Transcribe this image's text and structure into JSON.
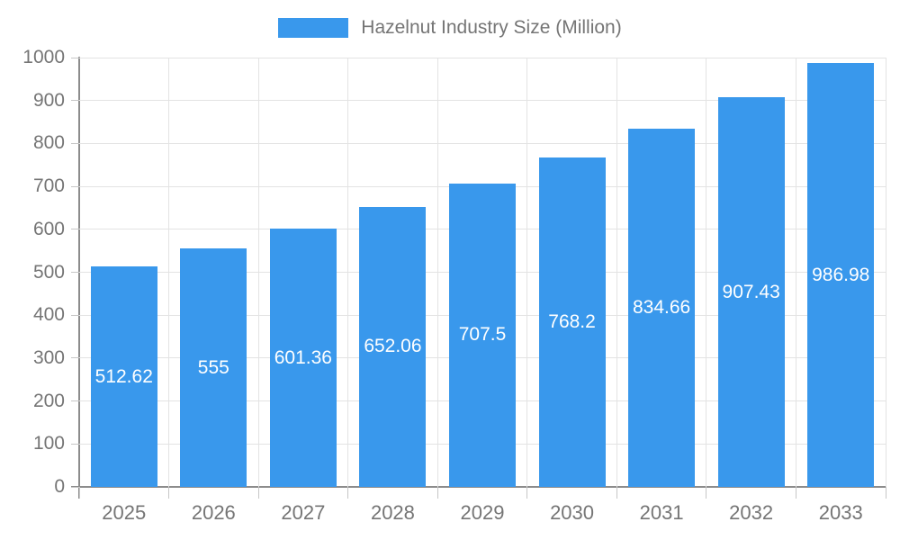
{
  "colors": {
    "bar": "#3998EC",
    "grid": "#E3E3E3",
    "axis_line": "#8C8C8C",
    "tick": "#C6C6C6",
    "label_text": "#757575",
    "bar_label_text": "#FFFFFF",
    "background": "#FFFFFF"
  },
  "legend": {
    "position": "top",
    "swatch_icon": "legend-color-swatch"
  },
  "chart_data": {
    "type": "bar",
    "title": "Hazelnut Industry Size (Million)",
    "xlabel": "",
    "ylabel": "",
    "categories": [
      "2025",
      "2026",
      "2027",
      "2028",
      "2029",
      "2030",
      "2031",
      "2032",
      "2033"
    ],
    "values": [
      512.62,
      555,
      601.36,
      652.06,
      707.5,
      768.2,
      834.66,
      907.43,
      986.98
    ],
    "value_labels": [
      "512.62",
      "555",
      "601.36",
      "652.06",
      "707.5",
      "768.2",
      "834.66",
      "907.43",
      "986.98"
    ],
    "ylim": [
      0,
      1000
    ],
    "y_tick_step": 100,
    "y_tick_labels": [
      "0",
      "100",
      "200",
      "300",
      "400",
      "500",
      "600",
      "700",
      "800",
      "900",
      "1000"
    ],
    "grid": true,
    "legend_position": "top",
    "value_label_position": "center-inside",
    "series": [
      {
        "name": "Hazelnut Industry Size (Million)",
        "color": "#3998EC"
      }
    ]
  }
}
